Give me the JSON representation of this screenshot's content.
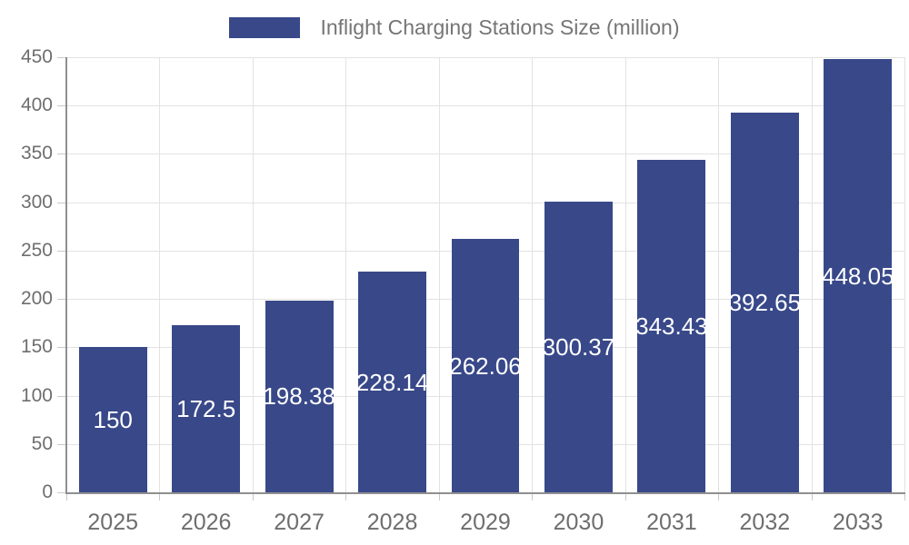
{
  "legend": {
    "label": "Inflight Charging Stations Size (million)"
  },
  "chart_data": {
    "type": "bar",
    "title": "Inflight Charging Stations Size (million)",
    "categories": [
      "2025",
      "2026",
      "2027",
      "2028",
      "2029",
      "2030",
      "2031",
      "2032",
      "2033"
    ],
    "values": [
      150,
      172.5,
      198.38,
      228.14,
      262.06,
      300.37,
      343.43,
      392.65,
      448.05
    ],
    "value_labels": [
      "150",
      "172.5",
      "198.38",
      "228.14",
      "262.06",
      "300.37",
      "343.43",
      "392.65",
      "448.05"
    ],
    "xlabel": "",
    "ylabel": "",
    "ylim": [
      0,
      450
    ],
    "ytick_step": 50,
    "grid": true,
    "legend_position": "top",
    "colors": {
      "bar": "#384889",
      "grid": "#e2e2e2",
      "axis": "#8f8f8f",
      "tick": "#c9c9c9",
      "tick_label": "#6e6e6e",
      "legend_text": "#757575",
      "value_label": "#ffffff",
      "background": "#ffffff"
    }
  }
}
